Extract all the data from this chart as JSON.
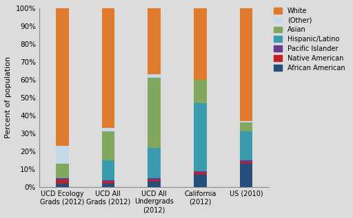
{
  "categories": [
    "UCD Ecology\nGrads (2012)",
    "UCD All\nGrads (2012)",
    "UCD All\nUndergrads\n(2012)",
    "California\n(2012)",
    "US (2010)"
  ],
  "series": {
    "African American": [
      2,
      2,
      3,
      7,
      13
    ],
    "Native American": [
      2,
      1,
      1,
      1,
      1
    ],
    "Pacific Islander": [
      1,
      1,
      1,
      1,
      1
    ],
    "Hispanic/Latino": [
      0,
      11,
      17,
      38,
      16
    ],
    "Asian": [
      8,
      16,
      39,
      13,
      5
    ],
    "(Other)": [
      10,
      2,
      2,
      0,
      1
    ],
    "White": [
      77,
      67,
      37,
      40,
      63
    ]
  },
  "colors": {
    "African American": "#254E7A",
    "Native American": "#BE2026",
    "Pacific Islander": "#6A3B8B",
    "Hispanic/Latino": "#3A9BAF",
    "Asian": "#82A860",
    "(Other)": "#C5D9E8",
    "White": "#E07B2E"
  },
  "ylabel": "Percent of population",
  "ylim": [
    0,
    100
  ],
  "yticks": [
    0,
    10,
    20,
    30,
    40,
    50,
    60,
    70,
    80,
    90,
    100
  ],
  "ytick_labels": [
    "0%",
    "10%",
    "20%",
    "30%",
    "40%",
    "50%",
    "60%",
    "70%",
    "80%",
    "90%",
    "100%"
  ],
  "legend_order": [
    "White",
    "(Other)",
    "Asian",
    "Hispanic/Latino",
    "Pacific Islander",
    "Native American",
    "African American"
  ],
  "bar_width": 0.28,
  "bg_color": "#DCDCDC",
  "fig_bg_color": "#DCDCDC"
}
